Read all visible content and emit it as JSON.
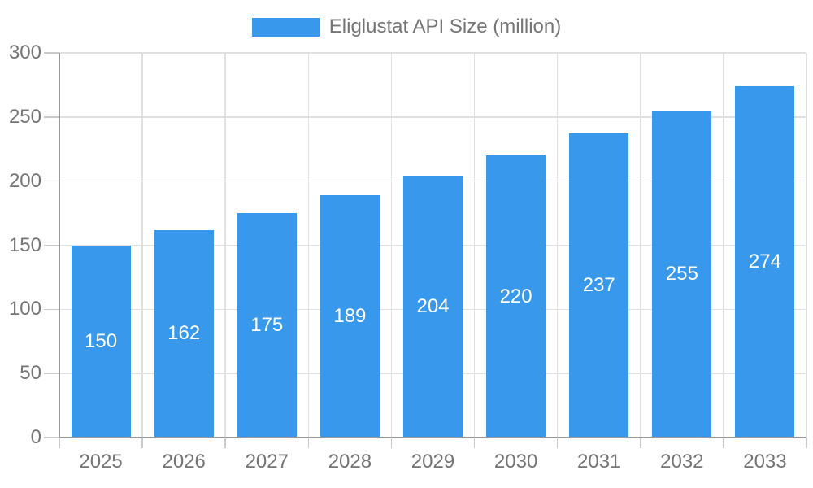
{
  "chart_data": {
    "type": "bar",
    "title": "",
    "legend": "Eliglustat API Size (million)",
    "categories": [
      "2025",
      "2026",
      "2027",
      "2028",
      "2029",
      "2030",
      "2031",
      "2032",
      "2033"
    ],
    "series": [
      {
        "name": "Eliglustat API Size (million)",
        "values": [
          150,
          162,
          175,
          189,
          204,
          220,
          237,
          255,
          274
        ]
      }
    ],
    "xlabel": "",
    "ylabel": "",
    "ylim": [
      0,
      300
    ],
    "yticks": [
      0,
      50,
      100,
      150,
      200,
      250,
      300
    ],
    "grid": true,
    "legend_position": "top-center",
    "value_labels_inside_bars": true,
    "colors": {
      "bar": "#3899EC",
      "value_label": "#FFFFFF",
      "grid": "#E0E0E0",
      "tick": "#C9C9C9",
      "axis": "#999999",
      "text": "#757575"
    }
  }
}
